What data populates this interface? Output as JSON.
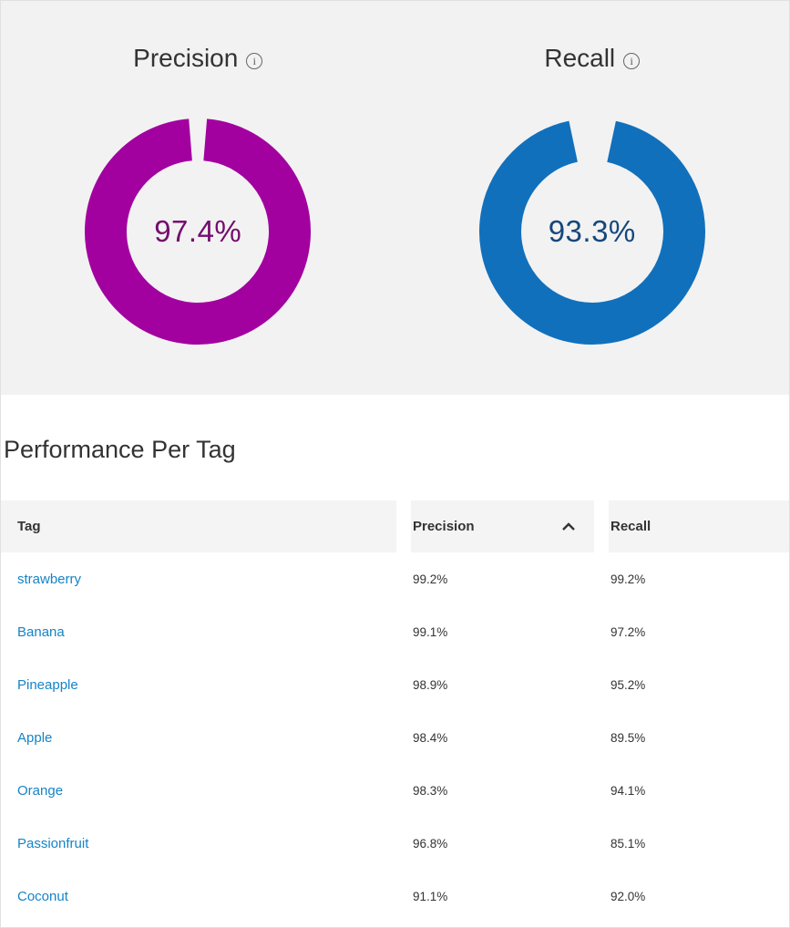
{
  "colors": {
    "precision_ring": "#a201a0",
    "precision_text": "#740d6d",
    "recall_ring": "#1170bc",
    "recall_text": "#15477c",
    "link_blue": "#1584c6",
    "charts_background": "#f2f2f2",
    "table_header_background": "#f4f4f4"
  },
  "charts": {
    "precision": {
      "title": "Precision",
      "value": 97.4,
      "value_label": "97.4%",
      "ring_color": "#a201a0",
      "text_color": "#740d6d"
    },
    "recall": {
      "title": "Recall",
      "value": 93.3,
      "value_label": "93.3%",
      "ring_color": "#1170bc",
      "text_color": "#15477c"
    }
  },
  "section": {
    "title": "Performance Per Tag"
  },
  "table": {
    "headers": {
      "tag": "Tag",
      "precision": "Precision",
      "recall": "Recall"
    },
    "sort": {
      "column": "Precision",
      "direction": "ascending"
    },
    "rows": [
      {
        "tag": "strawberry",
        "precision": "99.2%",
        "recall": "99.2%"
      },
      {
        "tag": "Banana",
        "precision": "99.1%",
        "recall": "97.2%"
      },
      {
        "tag": "Pineapple",
        "precision": "98.9%",
        "recall": "95.2%"
      },
      {
        "tag": "Apple",
        "precision": "98.4%",
        "recall": "89.5%"
      },
      {
        "tag": "Orange",
        "precision": "98.3%",
        "recall": "94.1%"
      },
      {
        "tag": "Passionfruit",
        "precision": "96.8%",
        "recall": "85.1%"
      },
      {
        "tag": "Coconut",
        "precision": "91.1%",
        "recall": "92.0%"
      }
    ]
  },
  "chart_data": [
    {
      "type": "pie",
      "subtype": "donut",
      "title": "Precision",
      "labels": [
        "Precision",
        "Remainder"
      ],
      "values": [
        97.4,
        2.6
      ],
      "center_label": "97.4%",
      "color": "#a201a0"
    },
    {
      "type": "pie",
      "subtype": "donut",
      "title": "Recall",
      "labels": [
        "Recall",
        "Remainder"
      ],
      "values": [
        93.3,
        6.7
      ],
      "center_label": "93.3%",
      "color": "#1170bc"
    },
    {
      "type": "table",
      "title": "Performance Per Tag",
      "columns": [
        "Tag",
        "Precision",
        "Recall"
      ],
      "rows": [
        [
          "strawberry",
          99.2,
          99.2
        ],
        [
          "Banana",
          99.1,
          97.2
        ],
        [
          "Pineapple",
          98.9,
          95.2
        ],
        [
          "Apple",
          98.4,
          89.5
        ],
        [
          "Orange",
          98.3,
          94.1
        ],
        [
          "Passionfruit",
          96.8,
          85.1
        ],
        [
          "Coconut",
          91.1,
          92.0
        ]
      ]
    }
  ]
}
